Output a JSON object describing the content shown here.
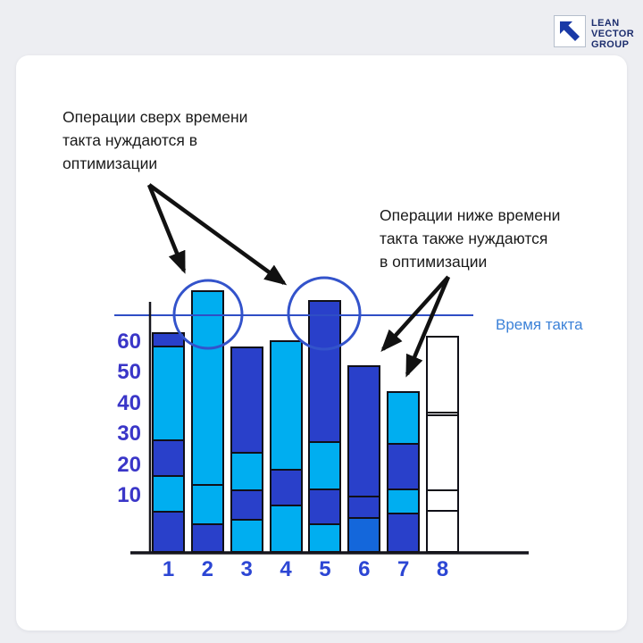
{
  "page": {
    "background": "#EDEEF2",
    "card_background": "#FFFFFF"
  },
  "logo": {
    "lines": [
      "LEAN",
      "VECTOR",
      "GROUP"
    ],
    "icon": "arrow-northwest-icon",
    "text_color": "#1D2E6E",
    "icon_color": "#1A3AA6"
  },
  "annotations": {
    "above_takt": {
      "text": "Операции сверх времени такта нуждаются в оптимизации",
      "lines": [
        "Операции сверх времени",
        "такта нуждаются в",
        "оптимизации"
      ]
    },
    "below_takt": {
      "text": "Операции ниже времени такта также нуждаются в оптимизации",
      "lines": [
        "Операции ниже времени",
        "такта также нуждаются",
        "в оптимизации"
      ]
    }
  },
  "chart_data": {
    "type": "bar",
    "stacked": true,
    "title": "",
    "xlabel": "",
    "ylabel": "",
    "categories": [
      "1",
      "2",
      "3",
      "4",
      "5",
      "6",
      "7",
      "8"
    ],
    "y_ticks": [
      60,
      50,
      40,
      30,
      20,
      10
    ],
    "y_axis_range_shown": [
      0,
      80
    ],
    "grid": false,
    "legend": false,
    "takt_line": {
      "label": "Время такта",
      "value": 68,
      "line_color": "#2F4EC5",
      "label_color": "#3C82D8"
    },
    "highlighted_categories": [
      "2",
      "5"
    ],
    "colors": {
      "dark": "#2940CA",
      "cyan": "#00AEF0",
      "mid": "#1467DB",
      "white": "#FFFFFF"
    },
    "totals_estimated": [
      63,
      75,
      59,
      61,
      72,
      53,
      46,
      62
    ],
    "bars": [
      {
        "category": "1",
        "segments": [
          {
            "v": 3.3,
            "c": "dark"
          },
          {
            "v": 27.2,
            "c": "cyan"
          },
          {
            "v": 10.4,
            "c": "dark"
          },
          {
            "v": 10.2,
            "c": "cyan"
          },
          {
            "v": 11.7,
            "c": "dark"
          }
        ]
      },
      {
        "category": "2",
        "segments": [
          {
            "v": 55.5,
            "c": "cyan"
          },
          {
            "v": 11.5,
            "c": "cyan"
          },
          {
            "v": 7.9,
            "c": "dark"
          }
        ]
      },
      {
        "category": "3",
        "segments": [
          {
            "v": 30.0,
            "c": "dark"
          },
          {
            "v": 10.9,
            "c": "cyan"
          },
          {
            "v": 8.7,
            "c": "dark"
          },
          {
            "v": 9.2,
            "c": "cyan"
          }
        ]
      },
      {
        "category": "4",
        "segments": [
          {
            "v": 36.9,
            "c": "cyan"
          },
          {
            "v": 10.2,
            "c": "dark"
          },
          {
            "v": 13.5,
            "c": "cyan"
          }
        ]
      },
      {
        "category": "5",
        "segments": [
          {
            "v": 40.2,
            "c": "dark"
          },
          {
            "v": 13.7,
            "c": "cyan"
          },
          {
            "v": 9.9,
            "c": "dark"
          },
          {
            "v": 8.1,
            "c": "cyan"
          }
        ]
      },
      {
        "category": "6",
        "segments": [
          {
            "v": 37.4,
            "c": "dark"
          },
          {
            "v": 6.1,
            "c": "dark"
          },
          {
            "v": 9.9,
            "c": "mid"
          }
        ]
      },
      {
        "category": "7",
        "segments": [
          {
            "v": 14.5,
            "c": "cyan"
          },
          {
            "v": 13.2,
            "c": "dark"
          },
          {
            "v": 7.1,
            "c": "cyan"
          },
          {
            "v": 11.2,
            "c": "dark"
          }
        ]
      },
      {
        "category": "8",
        "segments": [
          {
            "v": 21.5,
            "c": "white"
          },
          {
            "v": 22.4,
            "c": "white",
            "dbl": true
          },
          {
            "v": 6.0,
            "c": "white"
          },
          {
            "v": 11.9,
            "c": "white"
          }
        ]
      }
    ]
  }
}
